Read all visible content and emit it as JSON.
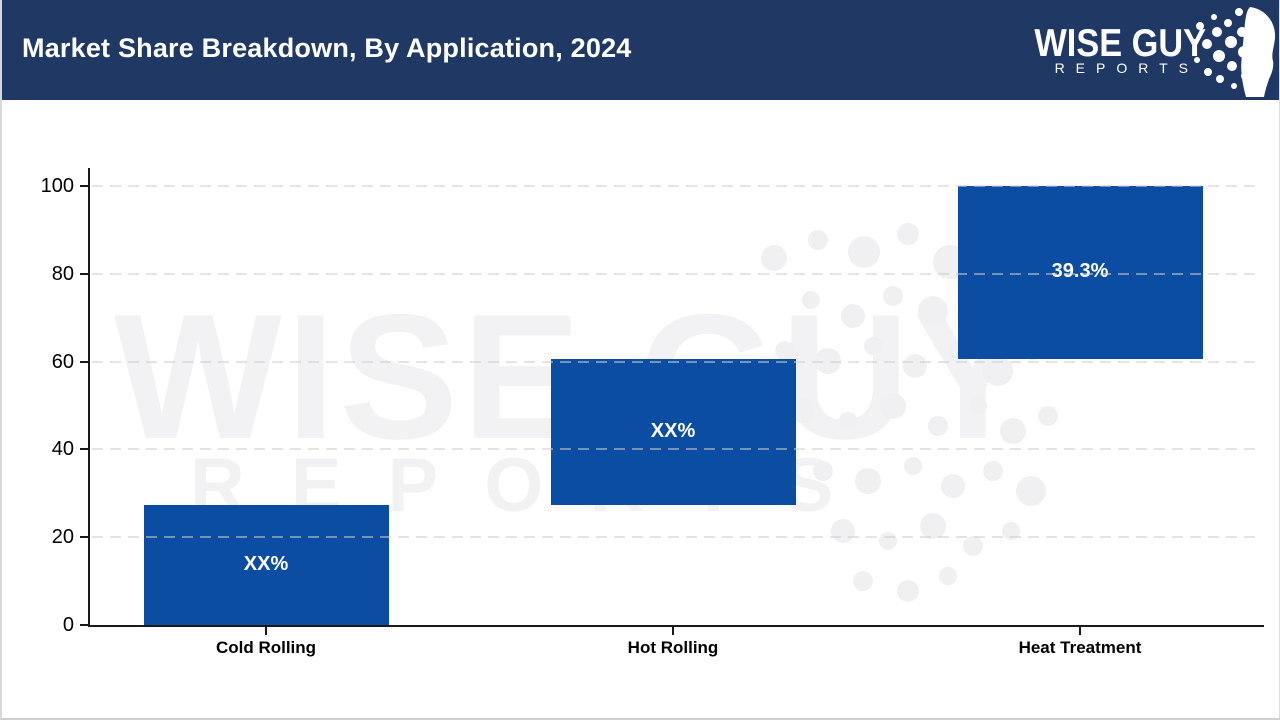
{
  "header": {
    "title": "Market Share Breakdown, By Application, 2024",
    "bg_color": "#1F3864",
    "logo": {
      "line1": "WISE GUY",
      "line2": "REPORTS"
    }
  },
  "watermark": {
    "line1": "WISE GUY",
    "line2": "REPORTS"
  },
  "chart_data": {
    "type": "bar",
    "subtype": "floating-waterfall",
    "title": "Market Share Breakdown, By Application, 2024",
    "categories": [
      "Cold Rolling",
      "Hot Rolling",
      "Heat Treatment"
    ],
    "series": [
      {
        "name": "Market Share (%)",
        "bars": [
          {
            "category": "Cold Rolling",
            "start": 0,
            "end": 27.4,
            "value": 27.4,
            "value_label": "XX%"
          },
          {
            "category": "Hot Rolling",
            "start": 27.4,
            "end": 60.7,
            "value": 33.3,
            "value_label": "XX%"
          },
          {
            "category": "Heat Treatment",
            "start": 60.7,
            "end": 100.0,
            "value": 39.3,
            "value_label": "39.3%"
          }
        ]
      }
    ],
    "ylim": [
      0,
      100
    ],
    "yticks": [
      0,
      20,
      40,
      60,
      80,
      100
    ],
    "grid": "horizontal dashed, drawn over bars",
    "legend": "none",
    "bar_color": "#0B4DA2",
    "value_label_color": "#FFFFFF"
  }
}
